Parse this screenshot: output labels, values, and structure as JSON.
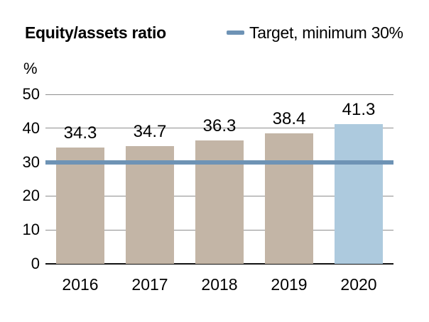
{
  "header": {
    "title": "Equity/assets ratio",
    "legend": {
      "label": "Target, minimum 30%",
      "swatch_color": "#6e93b5"
    }
  },
  "chart_data": {
    "type": "bar",
    "title": "Equity/assets ratio",
    "ylabel": "%",
    "xlabel": "",
    "categories": [
      "2016",
      "2017",
      "2018",
      "2019",
      "2020"
    ],
    "values": [
      34.3,
      34.7,
      36.3,
      38.4,
      41.3
    ],
    "bar_labels": [
      "34.3",
      "34.7",
      "36.3",
      "38.4",
      "41.3"
    ],
    "ylim": [
      0,
      50
    ],
    "yticks": [
      0,
      10,
      20,
      30,
      40,
      50
    ],
    "grid": true,
    "legend_position": "top-right",
    "legend_entries": [
      {
        "label": "Target, minimum 30%",
        "marker": "line",
        "color": "#6e93b5"
      }
    ],
    "reference_line": {
      "value": 30,
      "label": "Target, minimum 30%",
      "color": "#6e93b5"
    },
    "highlight_category": "2020",
    "colors": {
      "bar": "#c3b5a6",
      "bar_highlight": "#adcade",
      "reference_line": "#6e93b5",
      "gridline": "#8e8e8e",
      "axis_line": "#111111",
      "text": "#000000"
    }
  }
}
